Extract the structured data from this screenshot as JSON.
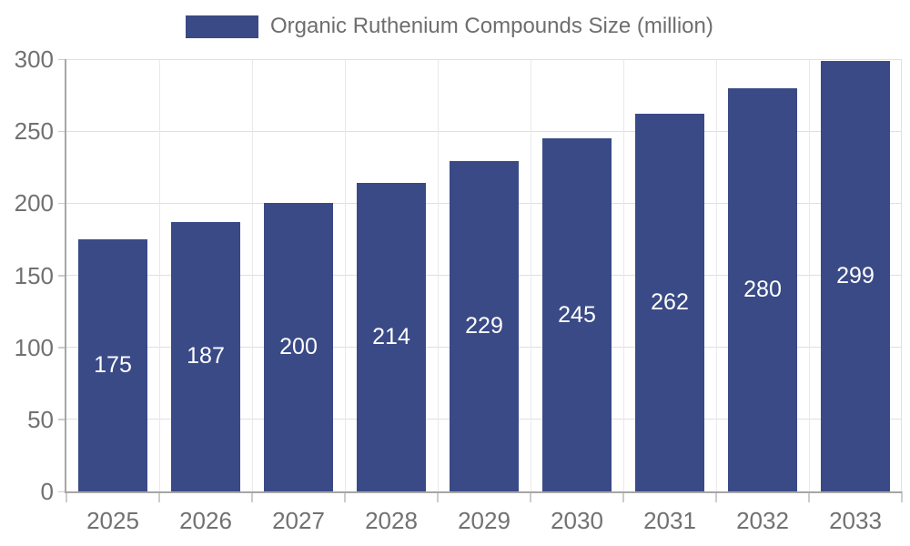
{
  "legend": {
    "label": "Organic Ruthenium Compounds Size (million)"
  },
  "chart_data": {
    "type": "bar",
    "title": "Organic Ruthenium Compounds Size (million)",
    "categories": [
      "2025",
      "2026",
      "2027",
      "2028",
      "2029",
      "2030",
      "2031",
      "2032",
      "2033"
    ],
    "values": [
      175,
      187,
      200,
      214,
      229,
      245,
      262,
      280,
      299
    ],
    "xlabel": "",
    "ylabel": "",
    "ylim": [
      0,
      300
    ],
    "yticks": [
      0,
      50,
      100,
      150,
      200,
      250,
      300
    ],
    "grid": true,
    "legend_position": "top",
    "bar_labels_inside": true
  },
  "colors": {
    "bar": "#3a4a86",
    "bar_label": "#ffffff",
    "axis_line": "#a6a6a6",
    "tick": "#cccccc",
    "hgrid": "#e0e0e0",
    "vgrid": "#e9e9e9",
    "axis_text": "#717171",
    "legend_text": "#6e6e6e",
    "background": "#ffffff"
  }
}
